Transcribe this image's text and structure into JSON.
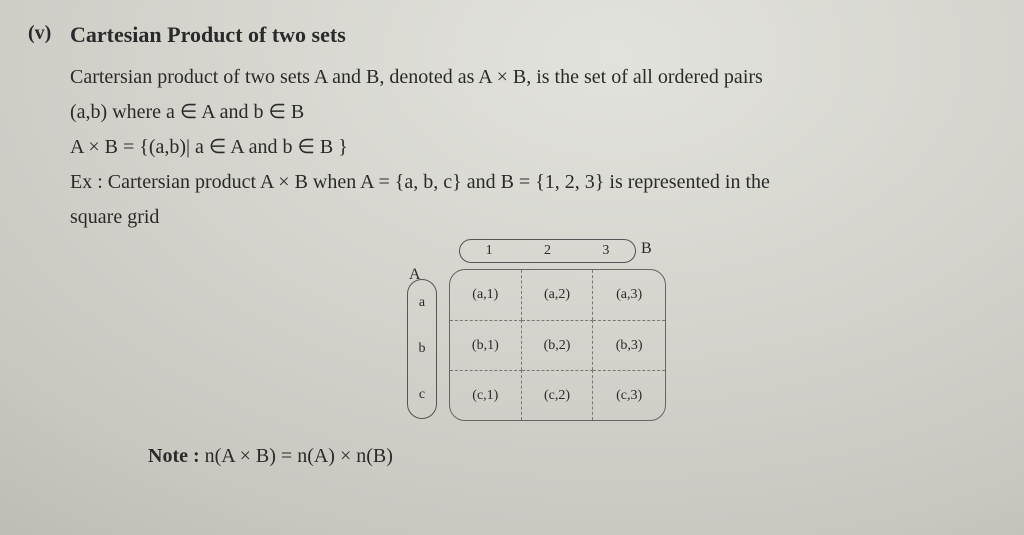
{
  "itemNumber": "(v)",
  "heading": "Cartesian Product of two sets",
  "p1": "Cartersian product of two sets A and B, denoted as A × B, is the set of all ordered pairs",
  "p2": "(a,b) where a ∈ A and b ∈ B",
  "p3": "A × B = {(a,b)| a ∈ A and b ∈ B }",
  "p4": "Ex : Cartersian product A × B when A = {a, b, c} and B = {1, 2, 3} is represented in the",
  "p5": "square grid",
  "labelA": "A",
  "labelB": "B",
  "colHeaders": [
    "1",
    "2",
    "3"
  ],
  "rowHeaders": [
    "a",
    "b",
    "c"
  ],
  "cells": [
    "(a,1)",
    "(a,2)",
    "(a,3)",
    "(b,1)",
    "(b,2)",
    "(b,3)",
    "(c,1)",
    "(c,2)",
    "(c,3)"
  ],
  "noteLabel": "Note :",
  "noteText": " n(A × B) = n(A) × n(B)"
}
